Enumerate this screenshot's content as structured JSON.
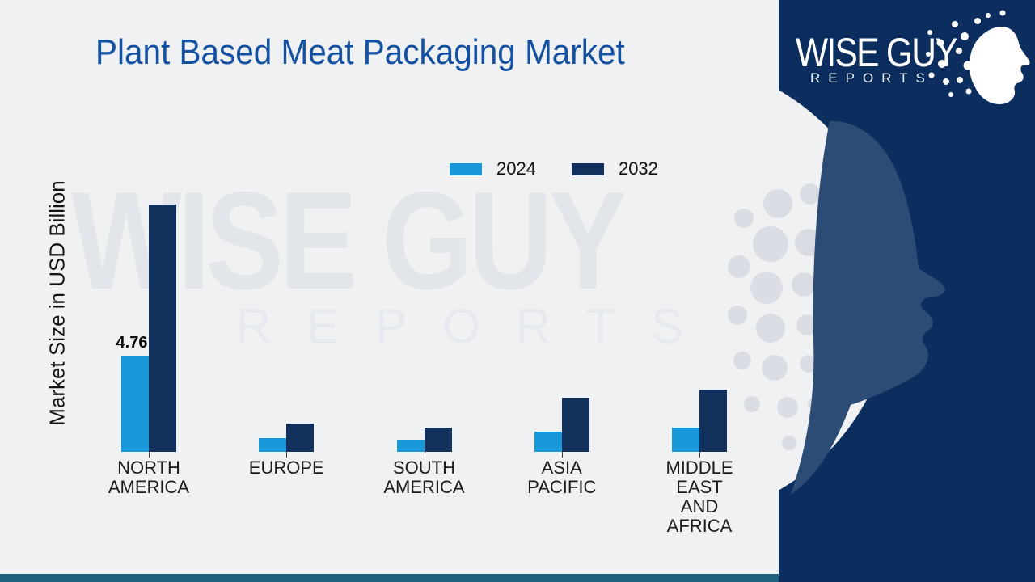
{
  "title": "Plant Based Meat Packaging Market",
  "logo": {
    "name": "WISE GUY",
    "sub": "REPORTS"
  },
  "watermark": {
    "line1": "WISE GUY",
    "line2": "REPORTS"
  },
  "y_axis_title": "Market Size in USD Billion",
  "legend": {
    "items": [
      {
        "label": "2024",
        "color": "#1898d9"
      },
      {
        "label": "2032",
        "color": "#12305c"
      }
    ]
  },
  "colors": {
    "background": "#f0f1f3",
    "brand_navy": "#0c2e5f",
    "bar_2024": "#1898d9",
    "bar_2032": "#12305c",
    "title_blue": "#1551a3",
    "bottom_bar_teal": "#1f6080"
  },
  "chart_data": {
    "type": "bar",
    "title": "Plant Based Meat Packaging Market",
    "ylabel": "Market Size in USD Billion",
    "xlabel": "",
    "categories": [
      "NORTH AMERICA",
      "EUROPE",
      "SOUTH AMERICA",
      "ASIA PACIFIC",
      "MIDDLE EAST AND AFRICA"
    ],
    "category_lines": [
      [
        "NORTH",
        "AMERICA"
      ],
      [
        "EUROPE"
      ],
      [
        "SOUTH",
        "AMERICA"
      ],
      [
        "ASIA",
        "PACIFIC"
      ],
      [
        "MIDDLE",
        "EAST",
        "AND",
        "AFRICA"
      ]
    ],
    "series": [
      {
        "name": "2024",
        "color": "#1898d9",
        "values": [
          4.76,
          0.7,
          0.6,
          1.0,
          1.2
        ]
      },
      {
        "name": "2032",
        "color": "#12305c",
        "values": [
          12.24,
          1.4,
          1.2,
          2.7,
          3.1
        ]
      }
    ],
    "data_labels": [
      {
        "series": "2024",
        "category": "NORTH AMERICA",
        "text": "4.76"
      }
    ],
    "ylim": [
      0,
      13
    ],
    "grid": false,
    "legend_position": "top-center",
    "units": "USD Billion"
  }
}
